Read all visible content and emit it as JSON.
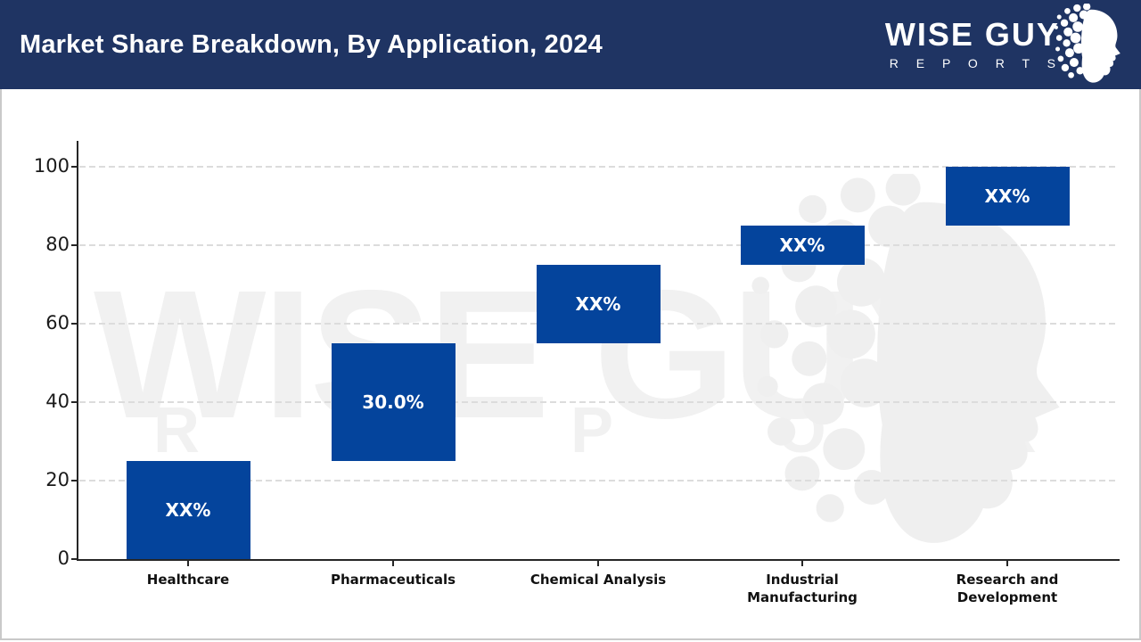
{
  "header": {
    "title": "Market Share Breakdown, By Application, 2024",
    "logo": {
      "line1": "WISE GUY",
      "line2": "R E P O R T S"
    }
  },
  "watermark": {
    "line1": "WISE GUY",
    "line2": "R E P O R T S"
  },
  "colors": {
    "header_bg": "#1f3463",
    "bar": "#04449c",
    "grid": "#dcdcdc",
    "axis": "#262626",
    "bar_label": "#ffffff",
    "watermark": "#f1f1f1",
    "frame_border": "#c9c9c9"
  },
  "chart_data": {
    "type": "bar",
    "subtype": "waterfall",
    "title": "Market Share Breakdown, By Application, 2024",
    "categories": [
      "Healthcare",
      "Pharmaceuticals",
      "Chemical Analysis",
      "Industrial Manufacturing",
      "Research and Development"
    ],
    "segments": [
      {
        "category": "Healthcare",
        "start": 0,
        "end": 25,
        "label": "XX%"
      },
      {
        "category": "Pharmaceuticals",
        "start": 25,
        "end": 55,
        "label": "30.0%"
      },
      {
        "category": "Chemical Analysis",
        "start": 55,
        "end": 75,
        "label": "XX%"
      },
      {
        "category": "Industrial Manufacturing",
        "start": 75,
        "end": 85,
        "label": "XX%"
      },
      {
        "category": "Research and Development",
        "start": 85,
        "end": 100,
        "label": "XX%"
      }
    ],
    "ylabel": "",
    "xlabel": "",
    "yticks": [
      0,
      20,
      40,
      60,
      80,
      100
    ],
    "ylim": [
      0,
      106
    ],
    "grid": "horizontal-dashed",
    "legend": false
  }
}
